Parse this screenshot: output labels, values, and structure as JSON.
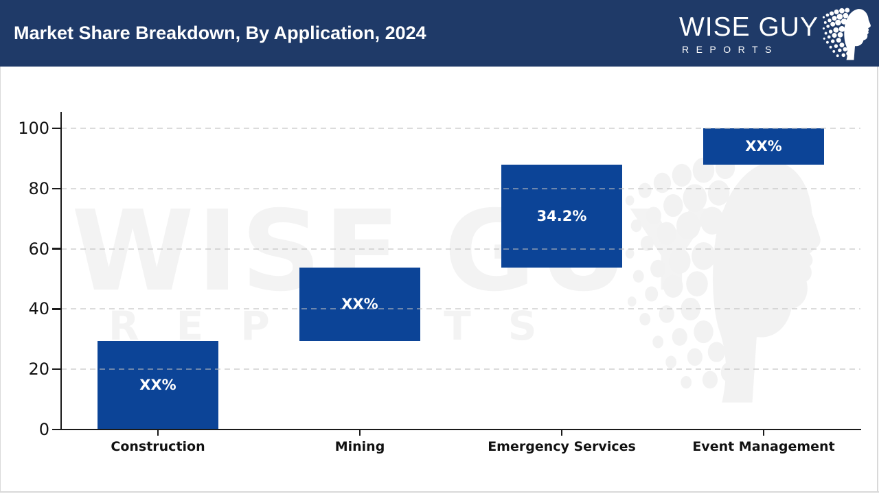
{
  "header": {
    "title": "Market Share Breakdown, By Application, 2024",
    "logo": {
      "line1": "WISE GUY",
      "line2": "REPORTS"
    }
  },
  "watermark": {
    "line1": "WISE GUY",
    "line2": "REPORTS"
  },
  "colors": {
    "header_bg": "#1f3a68",
    "bar_blue": "#0c4497",
    "grid": "#d8d8d8",
    "axis": "#1a1a1a",
    "watermark": "#f2f2f2",
    "bar_label_text": "#ffffff",
    "frame_border": "#d9d9d9"
  },
  "chart_data": {
    "type": "bar",
    "subtype": "floating-waterfall",
    "title": "Market Share Breakdown, By Application, 2024",
    "categories": [
      "Construction",
      "Mining",
      "Emergency Services",
      "Event Management"
    ],
    "segments": [
      {
        "category": "Construction",
        "from": 0,
        "to": 29.4,
        "label": "XX%"
      },
      {
        "category": "Mining",
        "from": 29.4,
        "to": 53.8,
        "label": "XX%"
      },
      {
        "category": "Emergency Services",
        "from": 53.8,
        "to": 88.0,
        "label": "34.2%"
      },
      {
        "category": "Event Management",
        "from": 88.0,
        "to": 100,
        "label": "XX%"
      }
    ],
    "ylim": [
      0,
      100
    ],
    "yticks": [
      0,
      20,
      40,
      60,
      80,
      100
    ],
    "grid": "horizontal-dashed",
    "legend": null,
    "bar_color": "#0c4497"
  }
}
